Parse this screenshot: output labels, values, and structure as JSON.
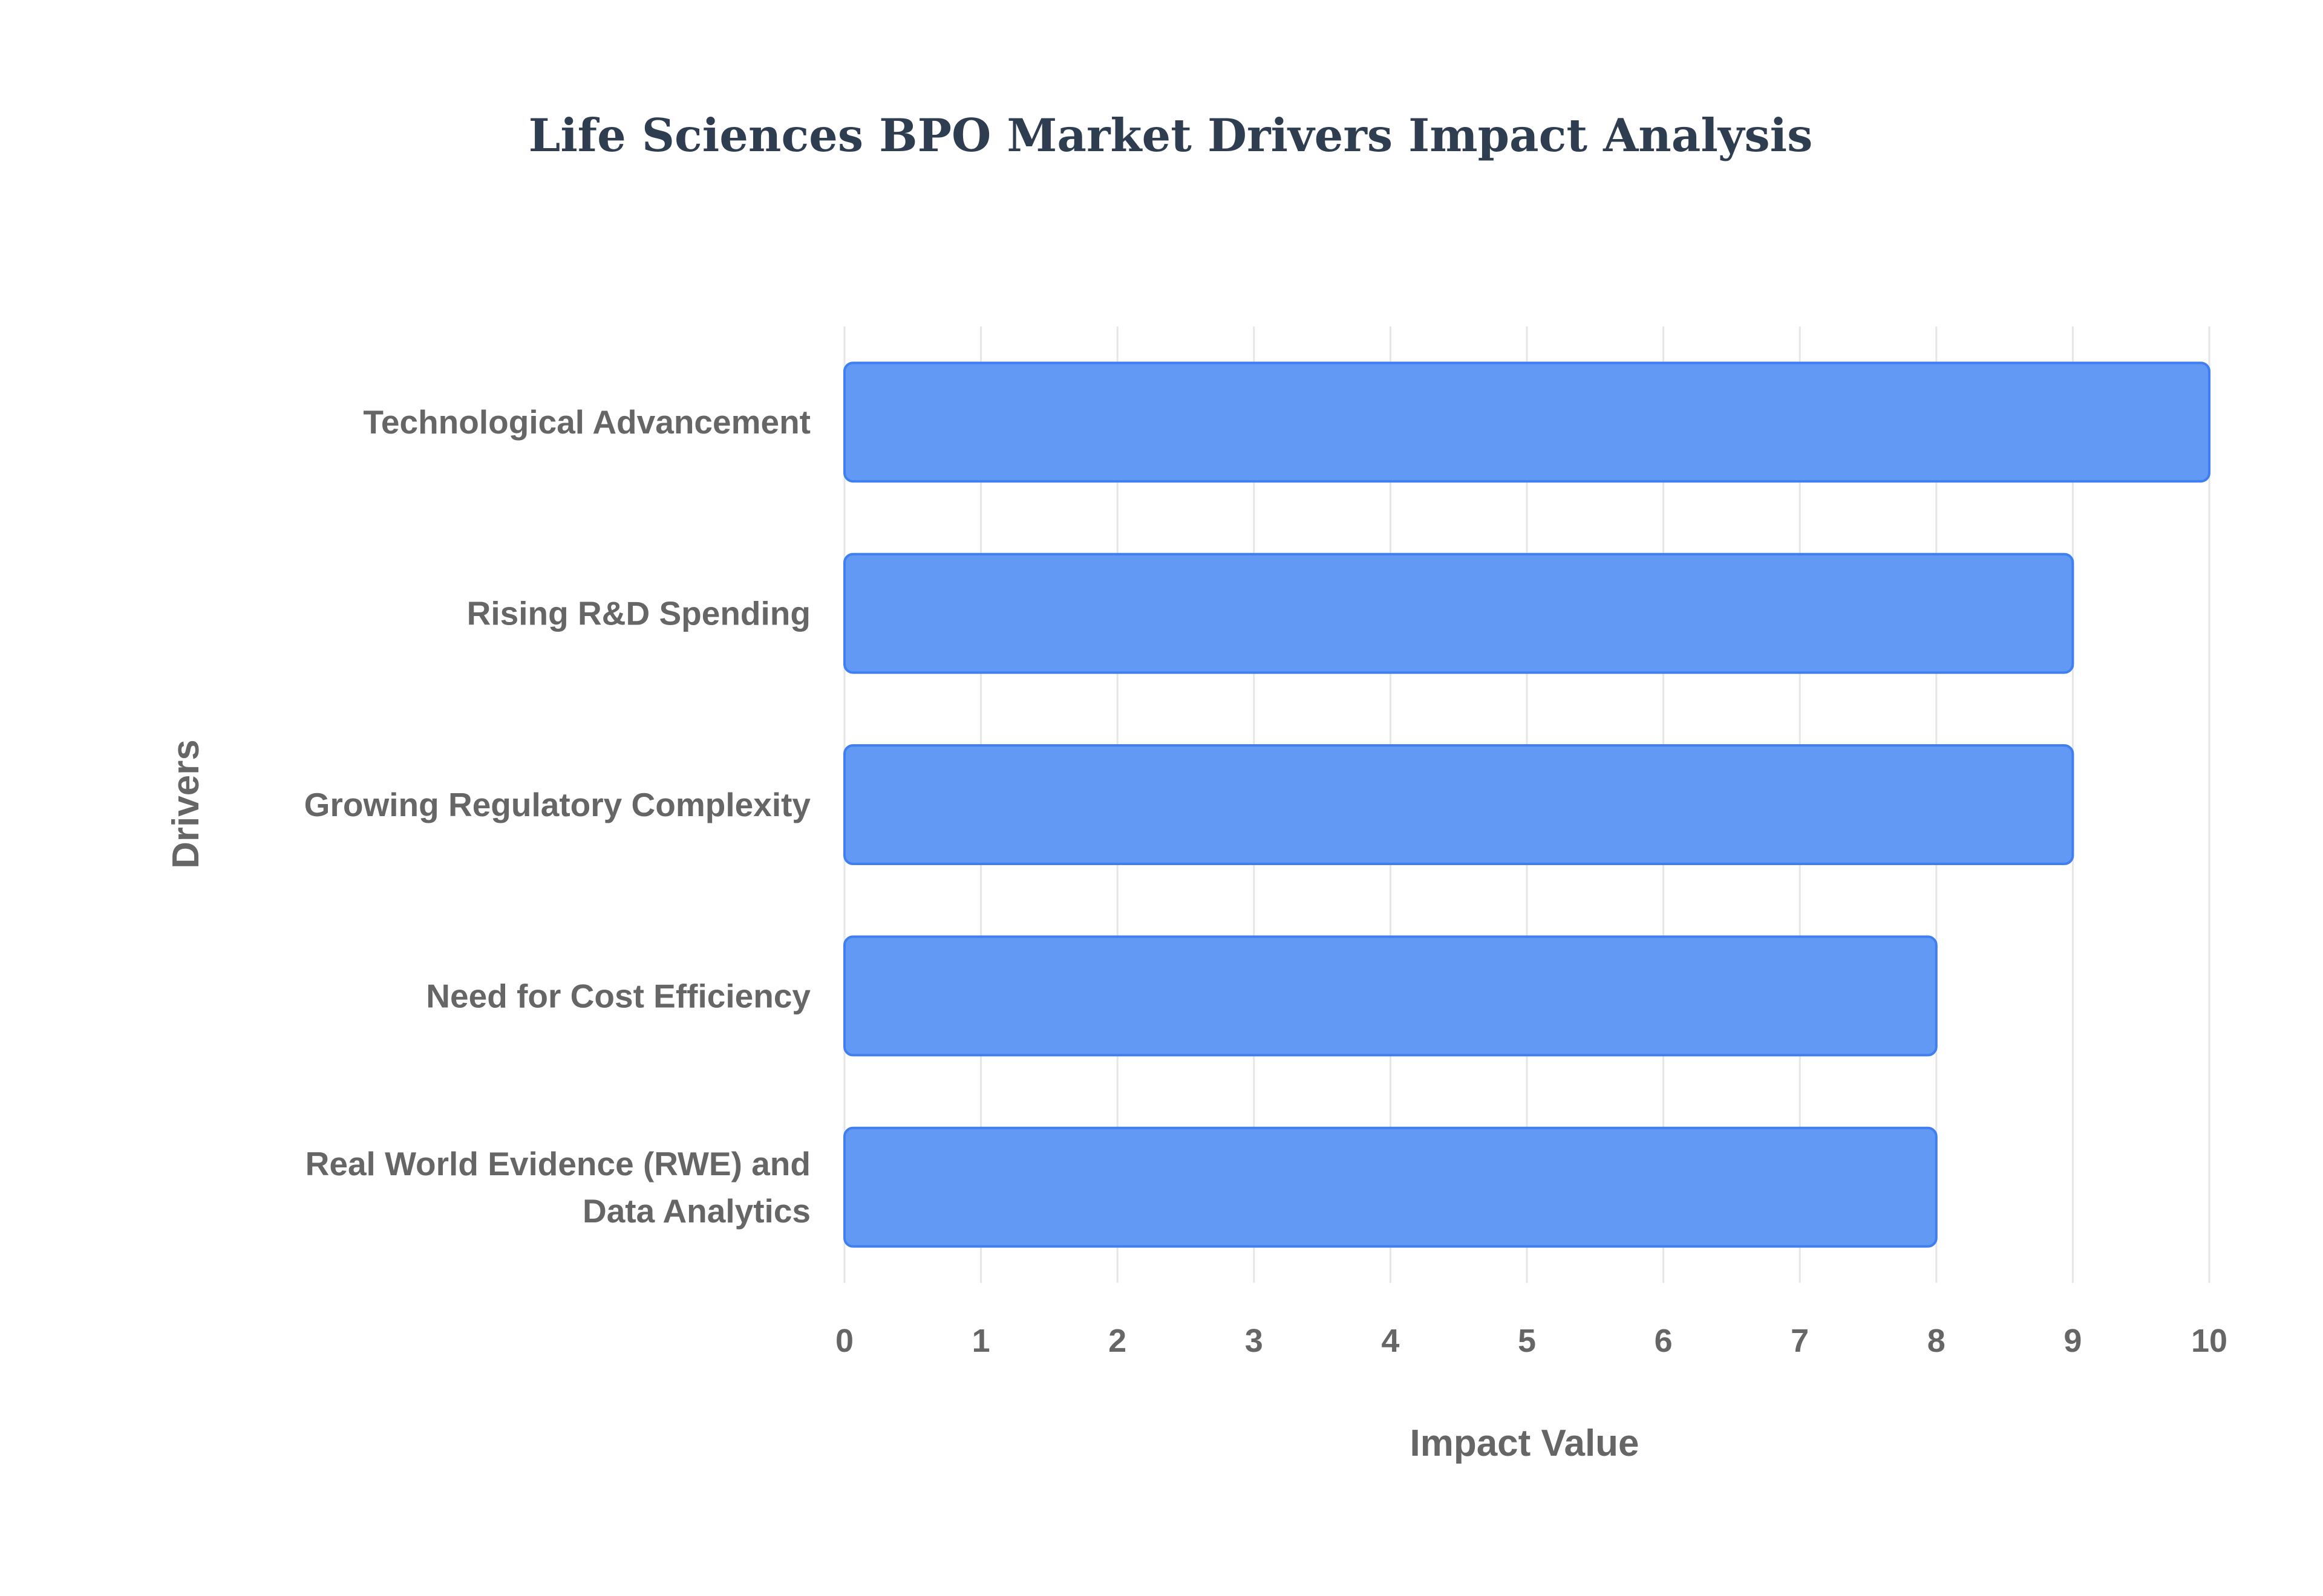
{
  "chart_data": {
    "type": "bar",
    "orientation": "horizontal",
    "title": "Life Sciences BPO Market Drivers Impact Analysis",
    "xlabel": "Impact Value",
    "ylabel": "Drivers",
    "categories": [
      "Technological Advancement",
      "Rising R&D Spending",
      "Growing Regulatory Complexity",
      "Need for Cost Efficiency",
      "Real World Evidence (RWE) and Data Analytics"
    ],
    "values": [
      10,
      9,
      9,
      8,
      8
    ],
    "xlim": [
      0,
      10
    ],
    "xticks": [
      0,
      1,
      2,
      3,
      4,
      5,
      6,
      7,
      8,
      9,
      10
    ],
    "grid": true,
    "legend": "none"
  },
  "colors": {
    "bar_fill": "#6199f5",
    "bar_stroke": "#3f7ff0",
    "title": "#2e3e50",
    "labels": "#666666",
    "grid": "#e6e6e6"
  }
}
